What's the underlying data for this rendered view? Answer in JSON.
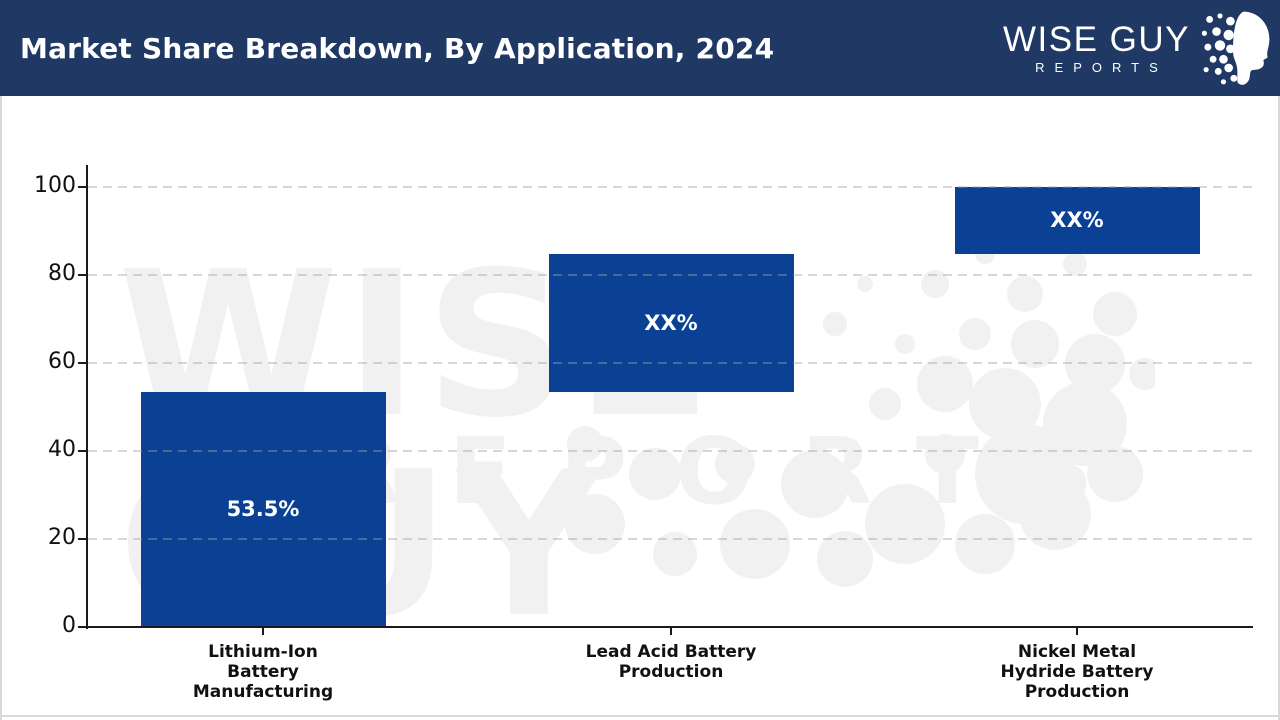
{
  "header": {
    "title": "Market Share Breakdown, By Application, 2024",
    "logo": {
      "name": "WISE GUY",
      "subtitle": "REPORTS"
    }
  },
  "watermark": {
    "line1": "WISE GUY",
    "line2": "REPORTS"
  },
  "chart_data": {
    "type": "bar",
    "subtype": "waterfall-stacked-percent",
    "title": "Market Share Breakdown, By Application, 2024",
    "categories": [
      {
        "lines": [
          "Lithium-Ion",
          "Battery",
          "Manufacturing"
        ]
      },
      {
        "lines": [
          "Lead Acid Battery",
          "Production"
        ]
      },
      {
        "lines": [
          "Nickel Metal",
          "Hydride Battery",
          "Production"
        ]
      }
    ],
    "segments": [
      {
        "start": 0,
        "end": 53.5,
        "value": 53.5,
        "label": "53.5%"
      },
      {
        "start": 53.5,
        "end": 84.8,
        "value": 31.3,
        "label": "XX%"
      },
      {
        "start": 84.8,
        "end": 100,
        "value": 15.2,
        "label": "XX%"
      }
    ],
    "yticks": [
      0,
      20,
      40,
      60,
      80,
      100
    ],
    "ylim": [
      0,
      105
    ],
    "grid": "dashed-horizontal",
    "legend": "none"
  },
  "colors": {
    "header_bg": "#1f3864",
    "bar": "#0a4194",
    "bar_label": "#ffffff",
    "axis": "#1a1a1a",
    "tick_label": "#111111",
    "grid_rgba": "rgba(160,160,160,0.42)",
    "watermark": "#f1f1f1",
    "frame": "#d9d9d9",
    "background": "#ffffff",
    "title_text": "#ffffff"
  }
}
